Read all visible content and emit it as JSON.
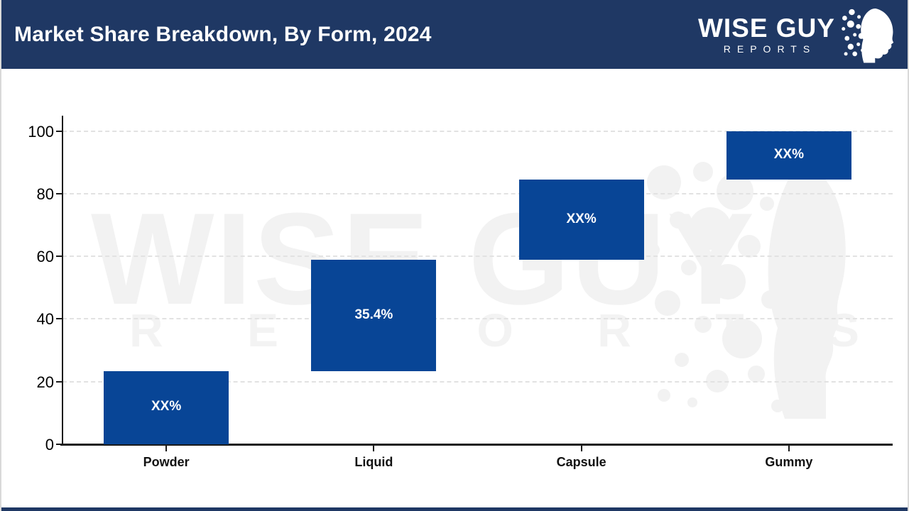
{
  "header": {
    "title": "Market Share Breakdown, By Form, 2024",
    "logo": {
      "line1": "WISE GUY",
      "line2": "REPORTS"
    }
  },
  "watermark": {
    "line1": "WISE GUY",
    "line2": "REPORTS"
  },
  "colors": {
    "header_navy": "#1F3864",
    "bar_blue": "#084596",
    "grid_grey": "#e2e2e2",
    "watermark_grey": "#f2f2f2",
    "label_white": "#ffffff",
    "axis_black": "#1a1a1a"
  },
  "chart_data": {
    "type": "bar",
    "subtype": "floating-segment-breakdown (cumulative market share, each bar spans its segment of 0-100%)",
    "title": "Market Share Breakdown, By Form, 2024",
    "categories": [
      "Powder",
      "Liquid",
      "Capsule",
      "Gummy"
    ],
    "bars": [
      {
        "category": "Powder",
        "start": 0,
        "end": 23.4,
        "label": "XX%"
      },
      {
        "category": "Liquid",
        "start": 23.4,
        "end": 58.8,
        "label": "35.4%"
      },
      {
        "category": "Capsule",
        "start": 58.8,
        "end": 84.5,
        "label": "XX%"
      },
      {
        "category": "Gummy",
        "start": 84.5,
        "end": 100,
        "label": "XX%"
      }
    ],
    "xlabel": "",
    "ylabel": "",
    "y_ticks": [
      0,
      20,
      40,
      60,
      80,
      100
    ],
    "ylim": [
      0,
      105
    ],
    "grid": "horizontal dashed",
    "legend": "none",
    "bar_color": "#084596",
    "value_label_color": "#ffffff"
  }
}
